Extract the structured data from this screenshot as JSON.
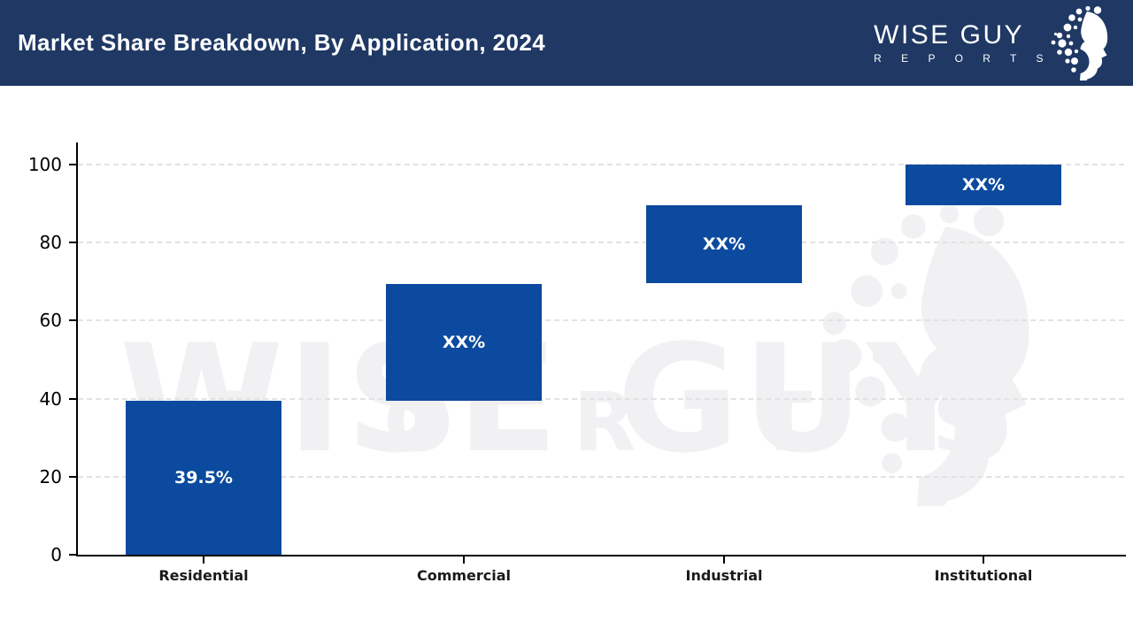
{
  "header": {
    "title": "Market Share Breakdown, By Application, 2024",
    "logo": {
      "line1": "WISE GUY",
      "line2": "R E P O R T S",
      "head_icon": "dotted-face-profile"
    }
  },
  "watermark": {
    "line1": "WISE GUY",
    "line2": "P O R T S",
    "head_icon": "dotted-face-profile"
  },
  "colors": {
    "header_bg": "#1f3864",
    "bar": "#0b4a9e",
    "bar_label_text": "#ffffff",
    "grid": "#e2e2e2",
    "axis": "#000000",
    "watermark": "#f1f1f3"
  },
  "chart_data": {
    "type": "bar",
    "subtype": "waterfall-segments",
    "title": "Market Share Breakdown, By Application, 2024",
    "xlabel": "",
    "ylabel": "",
    "categories": [
      "Residential",
      "Commercial",
      "Industrial",
      "Institutional"
    ],
    "segments": [
      {
        "category": "Residential",
        "start": 0,
        "end": 39.5,
        "label": "39.5%"
      },
      {
        "category": "Commercial",
        "start": 39.5,
        "end": 69.5,
        "label": "XX%"
      },
      {
        "category": "Industrial",
        "start": 69.5,
        "end": 89.5,
        "label": "XX%"
      },
      {
        "category": "Institutional",
        "start": 89.5,
        "end": 100,
        "label": "XX%"
      }
    ],
    "yticks": [
      0,
      20,
      40,
      60,
      80,
      100
    ],
    "ylim": [
      0,
      105.5
    ],
    "grid": "horizontal-dashed",
    "legend": "none"
  }
}
